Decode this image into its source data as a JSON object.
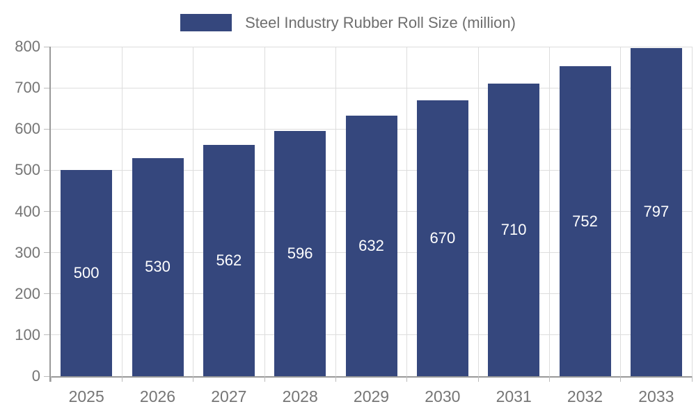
{
  "chart_data": {
    "type": "bar",
    "title": "Steel Industry Rubber Roll Size (million)",
    "legend": [
      "Steel Industry Rubber Roll Size (million)"
    ],
    "legend_position": "top-center",
    "categories": [
      "2025",
      "2026",
      "2027",
      "2028",
      "2029",
      "2030",
      "2031",
      "2032",
      "2033"
    ],
    "values": [
      500,
      530,
      562,
      596,
      632,
      670,
      710,
      752,
      797
    ],
    "xlabel": "",
    "ylabel": "",
    "ylim": [
      0,
      800
    ],
    "yticks": [
      0,
      100,
      200,
      300,
      400,
      500,
      600,
      700,
      800
    ],
    "grid": true,
    "value_label_position": "inside-center",
    "colors": {
      "bar": "#35477D",
      "bar_value_label": "#FFFFFF",
      "axis_text": "#757575",
      "legend_text": "#6E6E6E",
      "grid_line": "#DDDDDD",
      "axis_line": "#999999",
      "tick_mark": "#BBBBBB",
      "background": "#FFFFFF"
    }
  }
}
